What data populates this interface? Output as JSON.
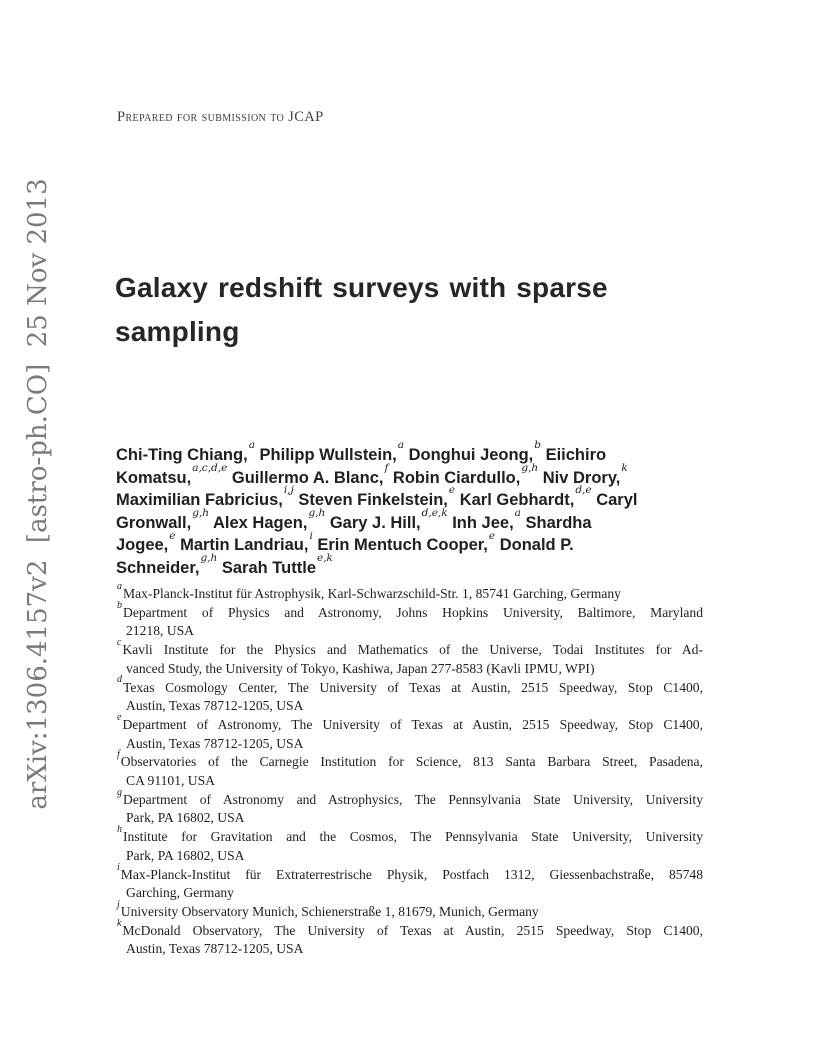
{
  "page": {
    "header_note": "Prepared for submission to JCAP",
    "watermark": "arXiv:1306.4157v2  [astro-ph.CO]  25 Nov 2013",
    "title_lines": [
      "Galaxy redshift surveys with sparse",
      "sampling"
    ]
  },
  "authors": {
    "lines": [
      [
        {
          "t": "Chi-Ting Chiang,",
          "s": "a"
        },
        {
          "t": "Philipp Wullstein,",
          "s": "a"
        },
        {
          "t": "Donghui Jeong,",
          "s": "b"
        },
        {
          "t": "Eiichiro",
          "s": ""
        }
      ],
      [
        {
          "t": "Komatsu,",
          "s": "a,c,d,e"
        },
        {
          "t": "Guillermo A. Blanc,",
          "s": "f"
        },
        {
          "t": "Robin Ciardullo,",
          "s": "g,h"
        },
        {
          "t": "Niv Drory,",
          "s": "k"
        }
      ],
      [
        {
          "t": "Maximilian Fabricius,",
          "s": "i,j"
        },
        {
          "t": "Steven Finkelstein,",
          "s": "e"
        },
        {
          "t": "Karl Gebhardt,",
          "s": "d,e"
        },
        {
          "t": "Caryl",
          "s": ""
        }
      ],
      [
        {
          "t": "Gronwall,",
          "s": "g,h"
        },
        {
          "t": "Alex Hagen,",
          "s": "g,h"
        },
        {
          "t": "Gary J. Hill,",
          "s": "d,e,k"
        },
        {
          "t": "Inh Jee,",
          "s": "a"
        },
        {
          "t": "Shardha",
          "s": ""
        }
      ],
      [
        {
          "t": "Jogee,",
          "s": "e"
        },
        {
          "t": "Martin Landriau,",
          "s": "i"
        },
        {
          "t": "Erin Mentuch Cooper,",
          "s": "e"
        },
        {
          "t": "Donald P.",
          "s": ""
        }
      ],
      [
        {
          "t": "Schneider,",
          "s": "g,h"
        },
        {
          "t": "Sarah Tuttle",
          "s": "e,k"
        }
      ]
    ]
  },
  "affiliations": [
    {
      "label": "a",
      "lines": [
        "Max-Planck-Institut für Astrophysik, Karl-Schwarzschild-Str. 1, 85741 Garching, Germany"
      ]
    },
    {
      "label": "b",
      "lines": [
        "Department of Physics and Astronomy, Johns Hopkins University, Baltimore, Maryland",
        "21218, USA"
      ]
    },
    {
      "label": "c",
      "lines": [
        "Kavli Institute for the Physics and Mathematics of the Universe, Todai Institutes for Ad-",
        "vanced Study, the University of Tokyo, Kashiwa, Japan 277-8583 (Kavli IPMU, WPI)"
      ]
    },
    {
      "label": "d",
      "lines": [
        "Texas Cosmology Center, The University of Texas at Austin, 2515 Speedway, Stop C1400,",
        "Austin, Texas 78712-1205, USA"
      ]
    },
    {
      "label": "e",
      "lines": [
        "Department of Astronomy, The University of Texas at Austin, 2515 Speedway, Stop C1400,",
        "Austin, Texas 78712-1205, USA"
      ]
    },
    {
      "label": "f",
      "lines": [
        "Observatories of the Carnegie Institution for Science, 813 Santa Barbara Street, Pasadena,",
        "CA 91101, USA"
      ]
    },
    {
      "label": "g",
      "lines": [
        "Department of Astronomy and Astrophysics, The Pennsylvania State University, University",
        "Park, PA 16802, USA"
      ]
    },
    {
      "label": "h",
      "lines": [
        "Institute for Gravitation and the Cosmos, The Pennsylvania State University, University",
        "Park, PA 16802, USA"
      ]
    },
    {
      "label": "i",
      "lines": [
        "Max-Planck-Institut für Extraterrestrische Physik, Postfach 1312, Giessenbachstraße, 85748",
        "Garching, Germany"
      ]
    },
    {
      "label": "j",
      "lines": [
        "University Observatory Munich, Schienerstraße 1, 81679, Munich, Germany"
      ]
    },
    {
      "label": "k",
      "lines": [
        "McDonald Observatory, The University of Texas at Austin, 2515 Speedway, Stop C1400,",
        "Austin, Texas 78712-1205, USA"
      ]
    }
  ],
  "colors": {
    "watermark_gray": "#7a7a7a",
    "text": "#1f1f1f",
    "background": "#ffffff"
  }
}
